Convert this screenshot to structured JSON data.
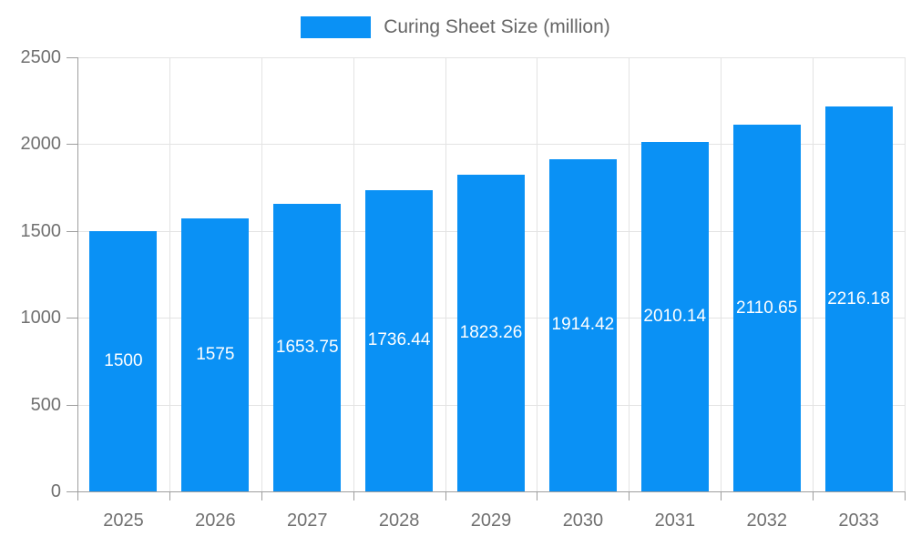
{
  "legend": {
    "label": "Curing Sheet Size (million)"
  },
  "colors": {
    "bar": "#0a91f5",
    "gridline": "#e3e3e3",
    "axis": "#9e9e9e",
    "tick_text": "#707070",
    "legend_text": "#666666",
    "bar_label_text": "#ffffff"
  },
  "chart_data": {
    "type": "bar",
    "title": "Curing Sheet Size (million)",
    "categories": [
      "2025",
      "2026",
      "2027",
      "2028",
      "2029",
      "2030",
      "2031",
      "2032",
      "2033"
    ],
    "values": [
      1500,
      1575,
      1653.75,
      1736.44,
      1823.26,
      1914.42,
      2010.14,
      2110.65,
      2216.18
    ],
    "value_labels": [
      "1500",
      "1575",
      "1653.75",
      "1736.44",
      "1823.26",
      "1914.42",
      "2010.14",
      "2110.65",
      "2216.18"
    ],
    "xlabel": "",
    "ylabel": "",
    "ylim": [
      0,
      2500
    ],
    "yticks": [
      0,
      500,
      1000,
      1500,
      2000,
      2500
    ],
    "grid": true,
    "legend_position": "top",
    "value_label_position": "center-inside-bar"
  }
}
